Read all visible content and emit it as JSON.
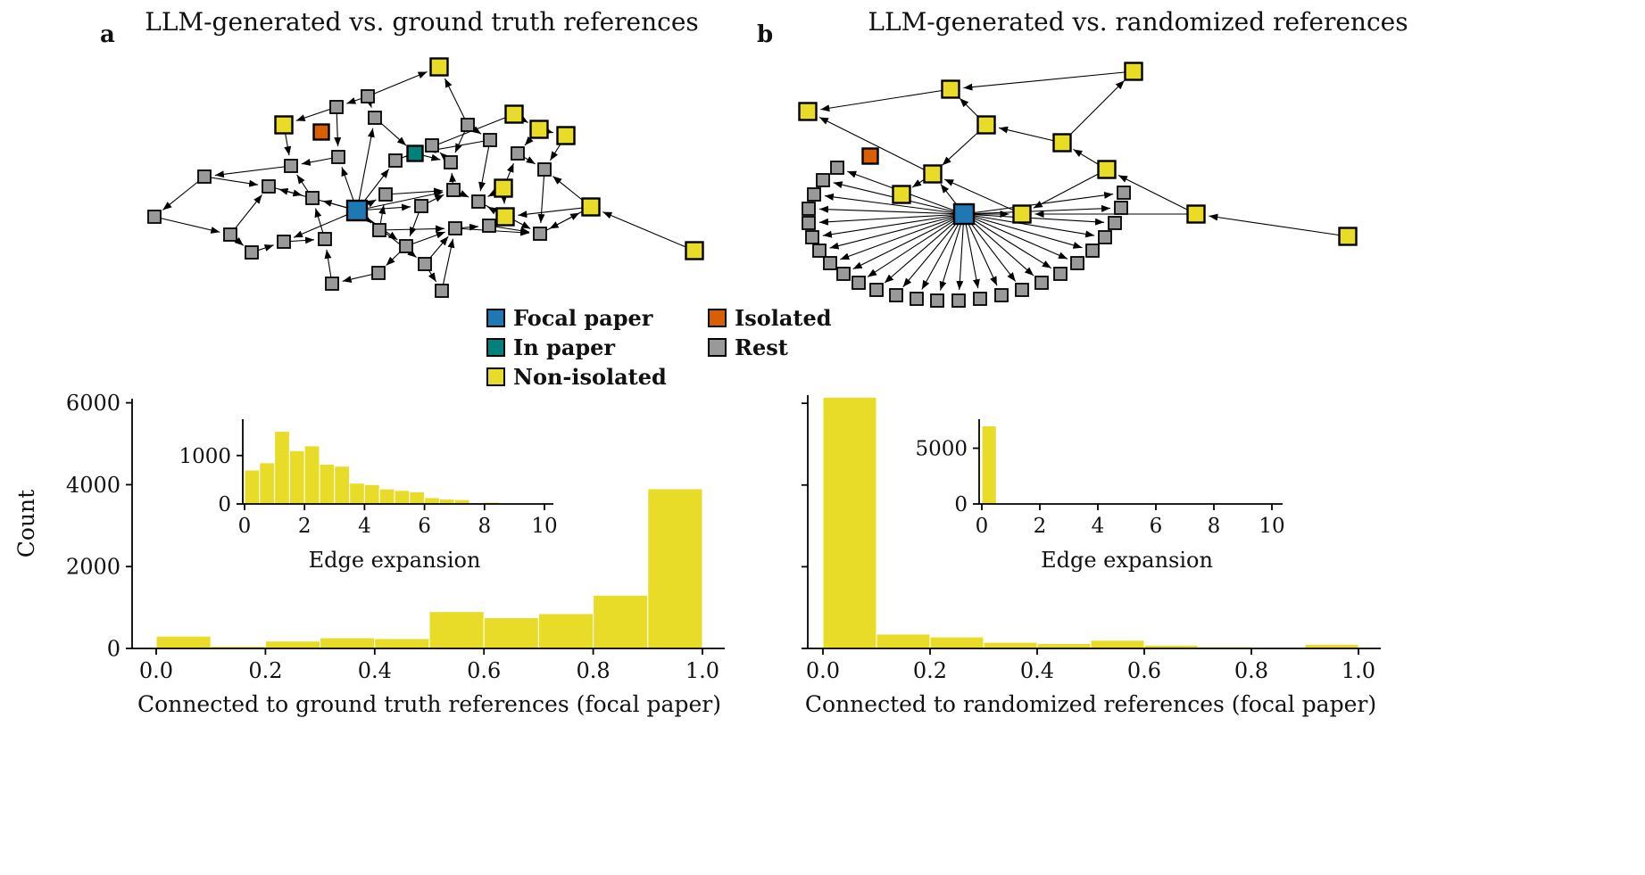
{
  "figure": {
    "panels": [
      {
        "letter": "a",
        "title": "LLM-generated vs. ground truth references"
      },
      {
        "letter": "b",
        "title": "LLM-generated vs. randomized references"
      }
    ]
  },
  "legend": {
    "items": [
      {
        "label": "Focal paper",
        "color": "#1f77b4"
      },
      {
        "label": "In paper",
        "color": "#00827b"
      },
      {
        "label": "Non-isolated",
        "color": "#e8dc29"
      },
      {
        "label": "Isolated",
        "color": "#d95f02"
      },
      {
        "label": "Rest",
        "color": "#999999"
      }
    ]
  },
  "colors": {
    "bar": "#e8dc29",
    "axis": "#000000",
    "edge": "#000000"
  },
  "node_colors": {
    "f": "#1f77b4",
    "p": "#00827b",
    "n": "#e8dc29",
    "i": "#d95f02",
    "r": "#999999"
  },
  "chart_data": [
    {
      "id": "network_a",
      "type": "network",
      "panel": "a",
      "nodes": [
        [
          362,
          20,
          "n"
        ],
        [
          247,
          65,
          "r"
        ],
        [
          290,
          77,
          "r"
        ],
        [
          188,
          85,
          "n"
        ],
        [
          230,
          93,
          "i"
        ],
        [
          394,
          85,
          "r"
        ],
        [
          446,
          73,
          "n"
        ],
        [
          474,
          90,
          "n"
        ],
        [
          504,
          97,
          "n"
        ],
        [
          419,
          102,
          "r"
        ],
        [
          335,
          117,
          "p"
        ],
        [
          354,
          108,
          "r"
        ],
        [
          313,
          125,
          "r"
        ],
        [
          375,
          127,
          "r"
        ],
        [
          450,
          117,
          "r"
        ],
        [
          480,
          135,
          "r"
        ],
        [
          196,
          131,
          "r"
        ],
        [
          249,
          121,
          "r"
        ],
        [
          99,
          143,
          "r"
        ],
        [
          171,
          154,
          "r"
        ],
        [
          220,
          167,
          "r"
        ],
        [
          270,
          181,
          "f"
        ],
        [
          302,
          163,
          "r"
        ],
        [
          378,
          158,
          "r"
        ],
        [
          406,
          171,
          "r"
        ],
        [
          436,
          188,
          "n"
        ],
        [
          342,
          176,
          "r"
        ],
        [
          43,
          188,
          "r"
        ],
        [
          532,
          177,
          "n"
        ],
        [
          128,
          208,
          "r"
        ],
        [
          152,
          228,
          "r"
        ],
        [
          188,
          216,
          "r"
        ],
        [
          234,
          213,
          "r"
        ],
        [
          295,
          203,
          "r"
        ],
        [
          325,
          221,
          "r"
        ],
        [
          380,
          201,
          "r"
        ],
        [
          418,
          198,
          "r"
        ],
        [
          434,
          156,
          "n"
        ],
        [
          242,
          263,
          "r"
        ],
        [
          294,
          251,
          "r"
        ],
        [
          346,
          241,
          "r"
        ],
        [
          365,
          271,
          "r"
        ],
        [
          648,
          226,
          "n"
        ],
        [
          475,
          207,
          "r"
        ],
        [
          282,
          53,
          "r"
        ]
      ],
      "edges": [
        [
          21,
          20
        ],
        [
          21,
          22
        ],
        [
          21,
          23
        ],
        [
          21,
          26
        ],
        [
          21,
          33
        ],
        [
          21,
          12
        ],
        [
          21,
          17
        ],
        [
          21,
          31
        ],
        [
          21,
          34
        ],
        [
          21,
          40
        ],
        [
          21,
          19
        ],
        [
          21,
          2
        ],
        [
          10,
          11
        ],
        [
          10,
          12
        ],
        [
          10,
          13
        ],
        [
          2,
          10
        ],
        [
          6,
          10
        ],
        [
          9,
          10
        ],
        [
          44,
          2
        ],
        [
          44,
          1
        ],
        [
          1,
          3
        ],
        [
          1,
          17
        ],
        [
          5,
          0
        ],
        [
          44,
          0
        ],
        [
          5,
          9
        ],
        [
          6,
          7
        ],
        [
          7,
          8
        ],
        [
          8,
          15
        ],
        [
          7,
          14
        ],
        [
          14,
          15
        ],
        [
          15,
          43
        ],
        [
          37,
          14
        ],
        [
          37,
          24
        ],
        [
          25,
          24
        ],
        [
          28,
          25
        ],
        [
          28,
          15
        ],
        [
          42,
          28
        ],
        [
          35,
          36
        ],
        [
          36,
          43
        ],
        [
          43,
          28
        ],
        [
          17,
          16
        ],
        [
          16,
          18
        ],
        [
          18,
          19
        ],
        [
          18,
          27
        ],
        [
          27,
          29
        ],
        [
          29,
          30
        ],
        [
          29,
          19
        ],
        [
          30,
          31
        ],
        [
          31,
          32
        ],
        [
          32,
          20
        ],
        [
          20,
          16
        ],
        [
          19,
          20
        ],
        [
          33,
          22
        ],
        [
          33,
          35
        ],
        [
          34,
          35
        ],
        [
          34,
          39
        ],
        [
          39,
          38
        ],
        [
          38,
          32
        ],
        [
          40,
          41
        ],
        [
          41,
          35
        ],
        [
          40,
          35
        ],
        [
          26,
          23
        ],
        [
          23,
          24
        ],
        [
          23,
          13
        ],
        [
          13,
          11
        ],
        [
          12,
          11
        ],
        [
          22,
          23
        ],
        [
          26,
          34
        ],
        [
          5,
          13
        ],
        [
          37,
          25
        ],
        [
          28,
          43
        ],
        [
          3,
          16
        ],
        [
          9,
          24
        ],
        [
          24,
          43
        ],
        [
          35,
          43
        ],
        [
          36,
          25
        ]
      ]
    },
    {
      "id": "network_b",
      "type": "network",
      "panel": "b",
      "nodes": [
        [
          210,
          185,
          "f"
        ],
        [
          68,
          133,
          "r"
        ],
        [
          52,
          147,
          "r"
        ],
        [
          42,
          163,
          "r"
        ],
        [
          36,
          179,
          "r"
        ],
        [
          36,
          195,
          "r"
        ],
        [
          40,
          211,
          "r"
        ],
        [
          48,
          226,
          "r"
        ],
        [
          60,
          240,
          "r"
        ],
        [
          75,
          252,
          "r"
        ],
        [
          92,
          262,
          "r"
        ],
        [
          112,
          270,
          "r"
        ],
        [
          134,
          276,
          "r"
        ],
        [
          157,
          280,
          "r"
        ],
        [
          180,
          282,
          "r"
        ],
        [
          204,
          282,
          "r"
        ],
        [
          228,
          280,
          "r"
        ],
        [
          252,
          276,
          "r"
        ],
        [
          275,
          270,
          "r"
        ],
        [
          297,
          262,
          "r"
        ],
        [
          318,
          252,
          "r"
        ],
        [
          337,
          240,
          "r"
        ],
        [
          354,
          226,
          "r"
        ],
        [
          368,
          211,
          "r"
        ],
        [
          379,
          195,
          "r"
        ],
        [
          386,
          178,
          "r"
        ],
        [
          389,
          161,
          "r"
        ],
        [
          35,
          70,
          "n"
        ],
        [
          195,
          45,
          "n"
        ],
        [
          235,
          85,
          "n"
        ],
        [
          400,
          25,
          "n"
        ],
        [
          320,
          105,
          "n"
        ],
        [
          370,
          135,
          "n"
        ],
        [
          175,
          140,
          "n"
        ],
        [
          140,
          163,
          "n"
        ],
        [
          275,
          185,
          "n"
        ],
        [
          470,
          185,
          "n"
        ],
        [
          640,
          210,
          "n"
        ],
        [
          105,
          120,
          "i"
        ]
      ],
      "edges": [
        [
          0,
          1
        ],
        [
          0,
          2
        ],
        [
          0,
          3
        ],
        [
          0,
          4
        ],
        [
          0,
          5
        ],
        [
          0,
          6
        ],
        [
          0,
          7
        ],
        [
          0,
          8
        ],
        [
          0,
          9
        ],
        [
          0,
          10
        ],
        [
          0,
          11
        ],
        [
          0,
          12
        ],
        [
          0,
          13
        ],
        [
          0,
          14
        ],
        [
          0,
          15
        ],
        [
          0,
          16
        ],
        [
          0,
          17
        ],
        [
          0,
          18
        ],
        [
          0,
          19
        ],
        [
          0,
          20
        ],
        [
          0,
          21
        ],
        [
          0,
          22
        ],
        [
          0,
          23
        ],
        [
          0,
          24
        ],
        [
          0,
          25
        ],
        [
          0,
          26
        ],
        [
          33,
          27
        ],
        [
          33,
          34
        ],
        [
          29,
          33
        ],
        [
          29,
          28
        ],
        [
          28,
          27
        ],
        [
          31,
          29
        ],
        [
          31,
          30
        ],
        [
          32,
          31
        ],
        [
          32,
          35
        ],
        [
          36,
          32
        ],
        [
          36,
          35
        ],
        [
          37,
          36
        ],
        [
          30,
          28
        ],
        [
          35,
          33
        ],
        [
          0,
          35
        ],
        [
          0,
          33
        ]
      ]
    },
    {
      "id": "hist_a",
      "type": "bar",
      "xlabel": "Connected to ground truth references (focal paper)",
      "ylabel": "Count",
      "bin_start": 0.0,
      "bin_width": 0.1,
      "values": [
        300,
        50,
        180,
        260,
        240,
        900,
        750,
        850,
        1300,
        3900
      ],
      "xticks": [
        0.0,
        0.2,
        0.4,
        0.6,
        0.8,
        1.0
      ],
      "xtick_labels": [
        "0.0",
        "0.2",
        "0.4",
        "0.6",
        "0.8",
        "1.0"
      ],
      "yticks": [
        0,
        2000,
        4000,
        6000
      ],
      "ytick_labels": [
        "0",
        "2000",
        "4000",
        "6000"
      ],
      "ylim": [
        0,
        6100
      ]
    },
    {
      "id": "inset_a",
      "type": "bar",
      "xlabel": "Edge expansion",
      "ylabel": "",
      "bin_start": 0.0,
      "bin_width": 0.5,
      "values": [
        700,
        850,
        1500,
        1100,
        1200,
        820,
        780,
        430,
        400,
        310,
        280,
        250,
        130,
        100,
        90,
        25,
        35,
        10,
        5,
        5
      ],
      "xticks": [
        0,
        2,
        4,
        6,
        8,
        10
      ],
      "xtick_labels": [
        "0",
        "2",
        "4",
        "6",
        "8",
        "10"
      ],
      "yticks": [
        0,
        1000
      ],
      "ytick_labels": [
        "0",
        "1000"
      ],
      "ylim": [
        0,
        1750
      ]
    },
    {
      "id": "hist_b",
      "type": "bar",
      "xlabel": "Connected to randomized references (focal paper)",
      "ylabel": "",
      "bin_start": 0.0,
      "bin_width": 0.1,
      "values": [
        6150,
        350,
        280,
        150,
        120,
        200,
        80,
        40,
        20,
        100
      ],
      "xticks": [
        0.0,
        0.2,
        0.4,
        0.6,
        0.8,
        1.0
      ],
      "xtick_labels": [
        "0.0",
        "0.2",
        "0.4",
        "0.6",
        "0.8",
        "1.0"
      ],
      "yticks": [
        0,
        2000,
        4000,
        6000
      ],
      "ytick_labels": [],
      "ylim": [
        0,
        6200
      ]
    },
    {
      "id": "inset_b",
      "type": "bar",
      "xlabel": "Edge expansion",
      "ylabel": "",
      "bin_start": 0.0,
      "bin_width": 0.5,
      "values": [
        7000,
        60,
        25,
        10,
        5,
        3,
        2,
        1,
        1,
        0,
        0,
        0,
        0,
        0,
        0,
        0,
        0,
        0,
        0,
        0
      ],
      "xticks": [
        0,
        2,
        4,
        6,
        8,
        10
      ],
      "xtick_labels": [
        "0",
        "2",
        "4",
        "6",
        "8",
        "10"
      ],
      "yticks": [
        0,
        5000
      ],
      "ytick_labels": [
        "0",
        "5000"
      ],
      "ylim": [
        0,
        7600
      ]
    }
  ]
}
